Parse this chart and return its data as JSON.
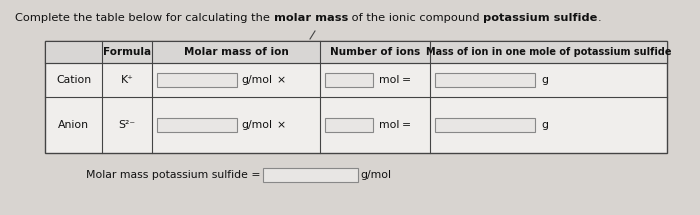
{
  "title_parts": [
    {
      "text": "Complete the table below for calculating the ",
      "bold": false
    },
    {
      "text": "molar mass",
      "bold": true
    },
    {
      "text": " of the ionic compound ",
      "bold": false
    },
    {
      "text": "potassium sulfide",
      "bold": true
    },
    {
      "text": ".",
      "bold": false
    }
  ],
  "bg_color": "#d8d4d0",
  "table_bg": "#f0eeec",
  "input_box_color": "#e8e6e4",
  "input_box_edge": "#888888",
  "table_border": "#444444",
  "text_color": "#111111",
  "header_fontsize": 7.5,
  "body_fontsize": 7.8,
  "title_fontsize": 8.2,
  "row1_label": "Cation",
  "row1_formula": "K⁺",
  "row2_label": "Anion",
  "row2_formula": "S²⁻",
  "unit_gpmol": "g/mol",
  "times_symbol": "×",
  "unit_mol": "mol",
  "equals_symbol": "=",
  "unit_g": "g",
  "bottom_label": "Molar mass potassium sulfide =",
  "bottom_unit": "g/mol",
  "header_labels": [
    "",
    "Formula",
    "Molar mass of ion",
    "Number of ions",
    "Mass of ion in one mole of potassium sulfide"
  ]
}
